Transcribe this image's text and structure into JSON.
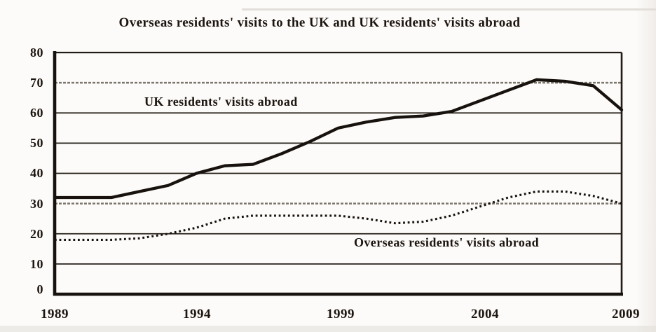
{
  "chart_data": {
    "type": "line",
    "title": "Overseas residents' visits to the UK and UK residents' visits abroad",
    "x": [
      1989,
      1990,
      1991,
      1992,
      1993,
      1994,
      1995,
      1996,
      1997,
      1998,
      1999,
      2000,
      2001,
      2002,
      2003,
      2004,
      2005,
      2006,
      2007,
      2008,
      2009
    ],
    "series": [
      {
        "name": "UK residents' visits abroad",
        "line_style": "solid",
        "color": "#17120e",
        "values": [
          32,
          32,
          32,
          34,
          36,
          40,
          42.5,
          43,
          46.5,
          50.5,
          55,
          57,
          58.5,
          59,
          60.5,
          64,
          67.5,
          71,
          70.5,
          69,
          61
        ]
      },
      {
        "name": "Overseas residents' visits abroad",
        "line_style": "dotted",
        "color": "#17120e",
        "values": [
          18,
          18,
          18,
          18.5,
          20,
          22,
          25,
          26,
          26,
          26,
          26,
          25,
          23.5,
          24,
          26,
          29,
          32,
          34,
          34,
          32.5,
          30
        ]
      }
    ],
    "annotations": [
      {
        "text": "UK residents' visits abroad"
      },
      {
        "text": "Overseas residents' visits abroad"
      }
    ],
    "xticks": [
      "1989",
      "1994",
      "1999",
      "2004",
      "2009"
    ],
    "yticks": [
      "0",
      "10",
      "20",
      "30",
      "40",
      "50",
      "60",
      "70",
      "80"
    ],
    "xlim": [
      1989,
      2009
    ],
    "ylim": [
      0,
      80
    ],
    "grid": "horizontal gridlines every 10",
    "legend_position": "inline text labels on plot"
  }
}
